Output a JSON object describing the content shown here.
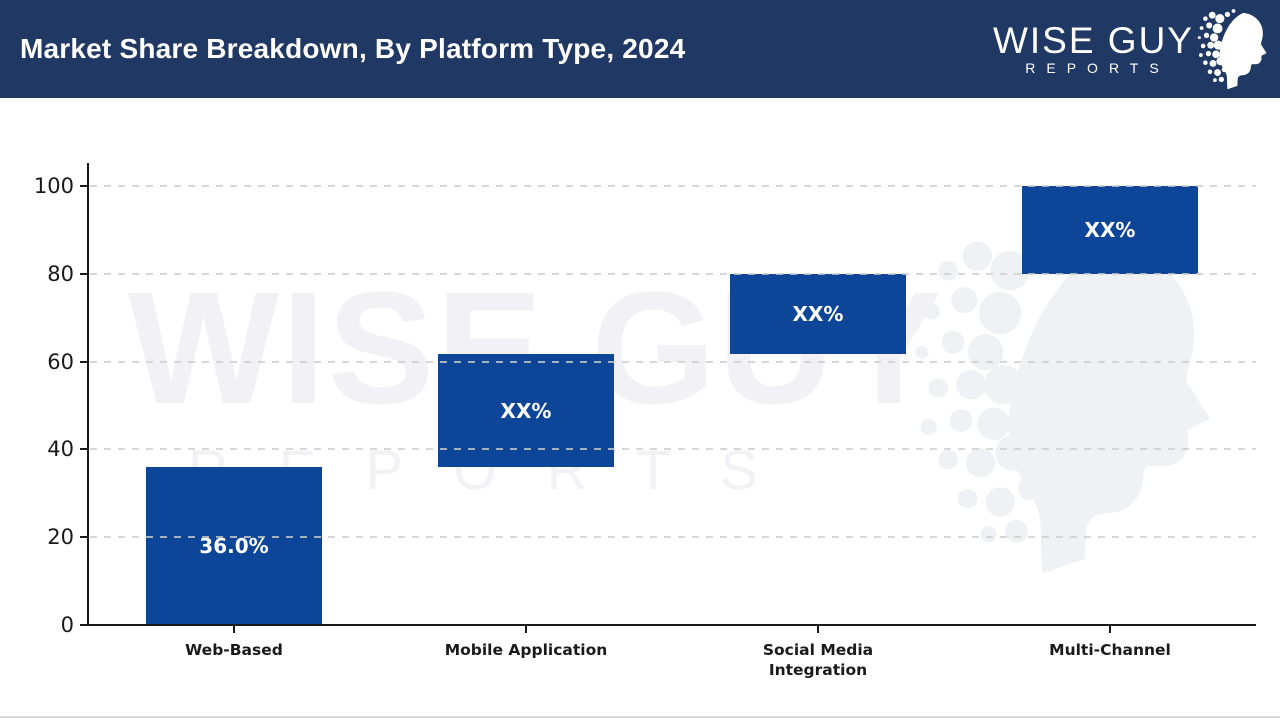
{
  "header": {
    "title": "Market Share Breakdown, By Platform Type, 2024",
    "logo": {
      "line1": "WISE GUY",
      "line2": "REPORTS"
    }
  },
  "watermark": {
    "line1": "WISE GUY",
    "line2": "REPORTS"
  },
  "chart_data": {
    "type": "bar",
    "subtype": "waterfall",
    "title": "Market Share Breakdown, By Platform Type, 2024",
    "categories": [
      "Web-Based",
      "Mobile Application",
      "Social Media Integration",
      "Multi-Channel"
    ],
    "category_display": [
      "Web-Based",
      "Mobile Application",
      "Social Media\nIntegration",
      "Multi-Channel"
    ],
    "bars": [
      {
        "category": "Web-Based",
        "start": 0,
        "end": 36,
        "label": "36.0%"
      },
      {
        "category": "Mobile Application",
        "start": 36,
        "end": 61.7,
        "label": "XX%"
      },
      {
        "category": "Social Media Integration",
        "start": 61.7,
        "end": 80,
        "label": "XX%"
      },
      {
        "category": "Multi-Channel",
        "start": 80,
        "end": 100,
        "label": "XX%"
      }
    ],
    "yticks": [
      0,
      20,
      40,
      60,
      80,
      100
    ],
    "ylim": [
      0,
      105
    ],
    "grid": "horizontal-dashed",
    "legend": "none",
    "bar_color": "#0d4599",
    "bar_label_color": "#ffffff"
  },
  "colors": {
    "header_bg": "#1f3864",
    "bar": "#0d4599",
    "axis": "#1a1a1a",
    "grid": "#d9d9d9",
    "watermark": "#f2f2f6",
    "title_text": "#ffffff"
  }
}
